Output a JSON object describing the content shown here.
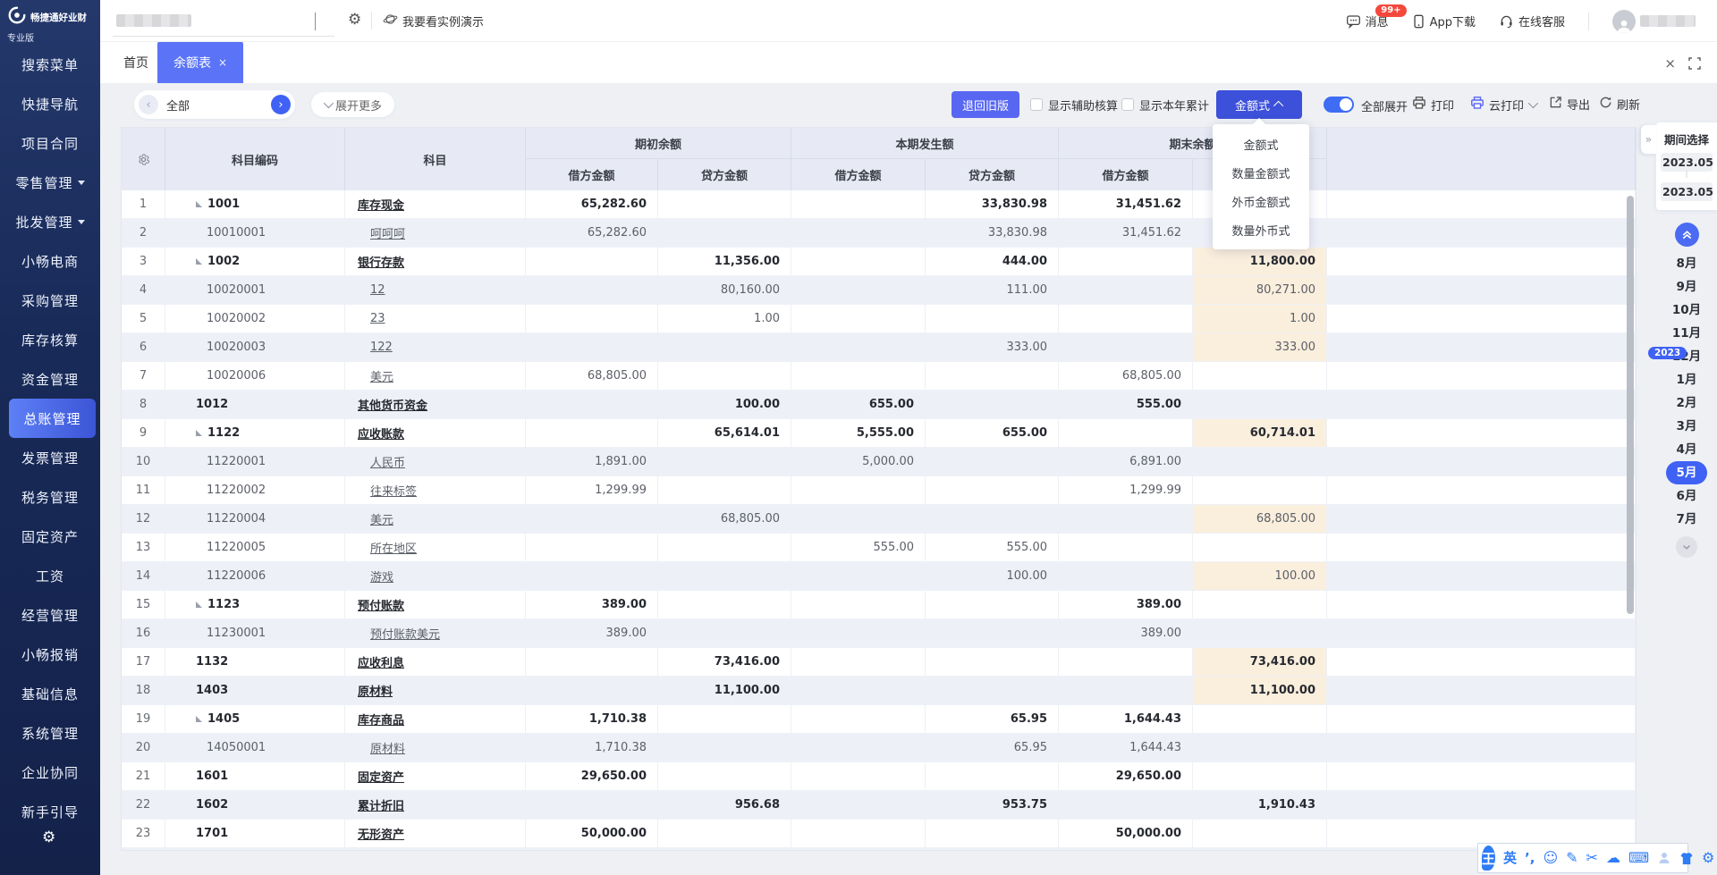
{
  "colors": {
    "accent": "#3f62f4",
    "accent_dark": "#3c50d9",
    "button_indigo": "#5867f2",
    "tab_active": "#5b74f7",
    "sidebar_bg": "#182a58",
    "highlight_cell": "#faeedd",
    "table_header_bg": "#e7eaf4",
    "zebra_row": "#eef0f8",
    "badge_red": "#f5483d",
    "ime_blue": "#2e7cf6"
  },
  "app": {
    "logo_title": "畅捷通好业财",
    "logo_subtitle": "专业版"
  },
  "topbar": {
    "demo_link": "我要看实例演示",
    "messages": "消息",
    "messages_badge": "99+",
    "app_download": "App下载",
    "online_support": "在线客服"
  },
  "tabs": {
    "home": "首页",
    "active": "余额表",
    "close": "×"
  },
  "sidebar": {
    "items": [
      {
        "label": "搜索菜单"
      },
      {
        "label": "快捷导航"
      },
      {
        "label": "项目合同"
      },
      {
        "label": "零售管理",
        "arrow": true
      },
      {
        "label": "批发管理",
        "arrow": true
      },
      {
        "label": "小畅电商"
      },
      {
        "label": "采购管理"
      },
      {
        "label": "库存核算"
      },
      {
        "label": "资金管理"
      },
      {
        "label": "总账管理",
        "active": true
      },
      {
        "label": "发票管理"
      },
      {
        "label": "税务管理"
      },
      {
        "label": "固定资产"
      },
      {
        "label": "工资"
      },
      {
        "label": "经营管理"
      },
      {
        "label": "小畅报销"
      },
      {
        "label": "基础信息"
      },
      {
        "label": "系统管理"
      },
      {
        "label": "企业协同"
      },
      {
        "label": "新手引导"
      }
    ]
  },
  "filter": {
    "scope": "全部",
    "expand_more": "展开更多"
  },
  "toolbar": {
    "back_old": "退回旧版",
    "cb_aux": "显示辅助核算",
    "cb_ytd": "显示本年累计",
    "format_btn": "金额式",
    "expand_all": "全部展开",
    "print": "打印",
    "cloud_print": "云打印",
    "export": "导出",
    "refresh": "刷新"
  },
  "format_menu": {
    "items": [
      "金额式",
      "数量金额式",
      "外币金额式",
      "数量外币式"
    ]
  },
  "table": {
    "col_code": "科目编码",
    "col_name": "科目",
    "groups": [
      "期初余额",
      "本期发生额",
      "期末余额"
    ],
    "sub": [
      "借方金额",
      "贷方金额"
    ],
    "rows": [
      {
        "n": 1,
        "code": "1001",
        "name": "库存现金",
        "lvl": 1,
        "exp": true,
        "bold": true,
        "v": [
          "65,282.60",
          "",
          "",
          "33,830.98",
          "31,451.62",
          ""
        ],
        "hl": []
      },
      {
        "n": 2,
        "code": "10010001",
        "name": "呵呵呵",
        "lvl": 2,
        "exp": false,
        "bold": false,
        "v": [
          "65,282.60",
          "",
          "",
          "33,830.98",
          "31,451.62",
          ""
        ],
        "hl": []
      },
      {
        "n": 3,
        "code": "1002",
        "name": "银行存款",
        "lvl": 1,
        "exp": true,
        "bold": true,
        "v": [
          "",
          "11,356.00",
          "",
          "444.00",
          "",
          "11,800.00"
        ],
        "hl": [
          5
        ]
      },
      {
        "n": 4,
        "code": "10020001",
        "name": "12",
        "lvl": 2,
        "exp": false,
        "bold": false,
        "v": [
          "",
          "80,160.00",
          "",
          "111.00",
          "",
          "80,271.00"
        ],
        "hl": [
          5
        ]
      },
      {
        "n": 5,
        "code": "10020002",
        "name": "23",
        "lvl": 2,
        "exp": false,
        "bold": false,
        "v": [
          "",
          "1.00",
          "",
          "",
          "",
          "1.00"
        ],
        "hl": [
          5
        ]
      },
      {
        "n": 6,
        "code": "10020003",
        "name": "122",
        "lvl": 2,
        "exp": false,
        "bold": false,
        "v": [
          "",
          "",
          "",
          "333.00",
          "",
          "333.00"
        ],
        "hl": [
          5
        ]
      },
      {
        "n": 7,
        "code": "10020006",
        "name": "美元",
        "lvl": 2,
        "exp": false,
        "bold": false,
        "v": [
          "68,805.00",
          "",
          "",
          "",
          "68,805.00",
          ""
        ],
        "hl": []
      },
      {
        "n": 8,
        "code": "1012",
        "name": "其他货币资金",
        "lvl": 1,
        "exp": false,
        "bold": true,
        "v": [
          "",
          "100.00",
          "655.00",
          "",
          "555.00",
          ""
        ],
        "hl": []
      },
      {
        "n": 9,
        "code": "1122",
        "name": "应收账款",
        "lvl": 1,
        "exp": true,
        "bold": true,
        "v": [
          "",
          "65,614.01",
          "5,555.00",
          "655.00",
          "",
          "60,714.01"
        ],
        "hl": [
          5
        ]
      },
      {
        "n": 10,
        "code": "11220001",
        "name": "人民币",
        "lvl": 2,
        "exp": false,
        "bold": false,
        "v": [
          "1,891.00",
          "",
          "5,000.00",
          "",
          "6,891.00",
          ""
        ],
        "hl": []
      },
      {
        "n": 11,
        "code": "11220002",
        "name": "往来标签",
        "lvl": 2,
        "exp": false,
        "bold": false,
        "v": [
          "1,299.99",
          "",
          "",
          "",
          "1,299.99",
          ""
        ],
        "hl": []
      },
      {
        "n": 12,
        "code": "11220004",
        "name": "美元",
        "lvl": 2,
        "exp": false,
        "bold": false,
        "v": [
          "",
          "68,805.00",
          "",
          "",
          "",
          "68,805.00"
        ],
        "hl": [
          5
        ]
      },
      {
        "n": 13,
        "code": "11220005",
        "name": "所在地区",
        "lvl": 2,
        "exp": false,
        "bold": false,
        "v": [
          "",
          "",
          "555.00",
          "555.00",
          "",
          ""
        ],
        "hl": []
      },
      {
        "n": 14,
        "code": "11220006",
        "name": "游戏",
        "lvl": 2,
        "exp": false,
        "bold": false,
        "v": [
          "",
          "",
          "",
          "100.00",
          "",
          "100.00"
        ],
        "hl": [
          5
        ]
      },
      {
        "n": 15,
        "code": "1123",
        "name": "预付账款",
        "lvl": 1,
        "exp": true,
        "bold": true,
        "v": [
          "389.00",
          "",
          "",
          "",
          "389.00",
          ""
        ],
        "hl": []
      },
      {
        "n": 16,
        "code": "11230001",
        "name": "预付账款美元",
        "lvl": 2,
        "exp": false,
        "bold": false,
        "v": [
          "389.00",
          "",
          "",
          "",
          "389.00",
          ""
        ],
        "hl": []
      },
      {
        "n": 17,
        "code": "1132",
        "name": "应收利息",
        "lvl": 1,
        "exp": false,
        "bold": true,
        "v": [
          "",
          "73,416.00",
          "",
          "",
          "",
          "73,416.00"
        ],
        "hl": [
          5
        ]
      },
      {
        "n": 18,
        "code": "1403",
        "name": "原材料",
        "lvl": 1,
        "exp": false,
        "bold": true,
        "v": [
          "",
          "11,100.00",
          "",
          "",
          "",
          "11,100.00"
        ],
        "hl": [
          5
        ]
      },
      {
        "n": 19,
        "code": "1405",
        "name": "库存商品",
        "lvl": 1,
        "exp": true,
        "bold": true,
        "v": [
          "1,710.38",
          "",
          "",
          "65.95",
          "1,644.43",
          ""
        ],
        "hl": []
      },
      {
        "n": 20,
        "code": "14050001",
        "name": "原材料",
        "lvl": 2,
        "exp": false,
        "bold": false,
        "v": [
          "1,710.38",
          "",
          "",
          "65.95",
          "1,644.43",
          ""
        ],
        "hl": []
      },
      {
        "n": 21,
        "code": "1601",
        "name": "固定资产",
        "lvl": 1,
        "exp": false,
        "bold": true,
        "v": [
          "29,650.00",
          "",
          "",
          "",
          "29,650.00",
          ""
        ],
        "hl": []
      },
      {
        "n": 22,
        "code": "1602",
        "name": "累计折旧",
        "lvl": 1,
        "exp": false,
        "bold": true,
        "v": [
          "",
          "956.68",
          "",
          "953.75",
          "",
          "1,910.43"
        ],
        "hl": []
      },
      {
        "n": 23,
        "code": "1701",
        "name": "无形资产",
        "lvl": 1,
        "exp": false,
        "bold": true,
        "v": [
          "50,000.00",
          "",
          "",
          "",
          "50,000.00",
          ""
        ],
        "hl": []
      }
    ]
  },
  "period": {
    "title": "期间选择",
    "from": "2023.05",
    "to": "2023.05",
    "year_badge": "2023",
    "months": [
      "8月",
      "9月",
      "10月",
      "11月",
      "12月",
      "1月",
      "2月",
      "3月",
      "4月",
      "5月",
      "6月",
      "7月"
    ],
    "active_month": "5月"
  },
  "ime": {
    "icons": [
      {
        "name": "ime-logo-icon",
        "glyph": "王",
        "kind": "logo"
      },
      {
        "name": "lang-mode-icon",
        "glyph": "英",
        "kind": "text"
      },
      {
        "name": "punctuation-icon",
        "glyph": "’,",
        "kind": "text"
      },
      {
        "name": "emoji-icon",
        "glyph": "☺",
        "kind": "glyph"
      },
      {
        "name": "handwriting-icon",
        "glyph": "✎",
        "kind": "glyph"
      },
      {
        "name": "screenshot-icon",
        "glyph": "✂",
        "kind": "glyph"
      },
      {
        "name": "cloud-icon",
        "glyph": "☁",
        "kind": "glyph"
      },
      {
        "name": "keyboard-icon",
        "glyph": "⌨",
        "kind": "glyph"
      },
      {
        "name": "profile-icon",
        "glyph": "",
        "kind": "person"
      },
      {
        "name": "skin-icon",
        "glyph": "",
        "kind": "shirt"
      },
      {
        "name": "settings-icon",
        "glyph": "⚙",
        "kind": "glyph"
      }
    ]
  }
}
